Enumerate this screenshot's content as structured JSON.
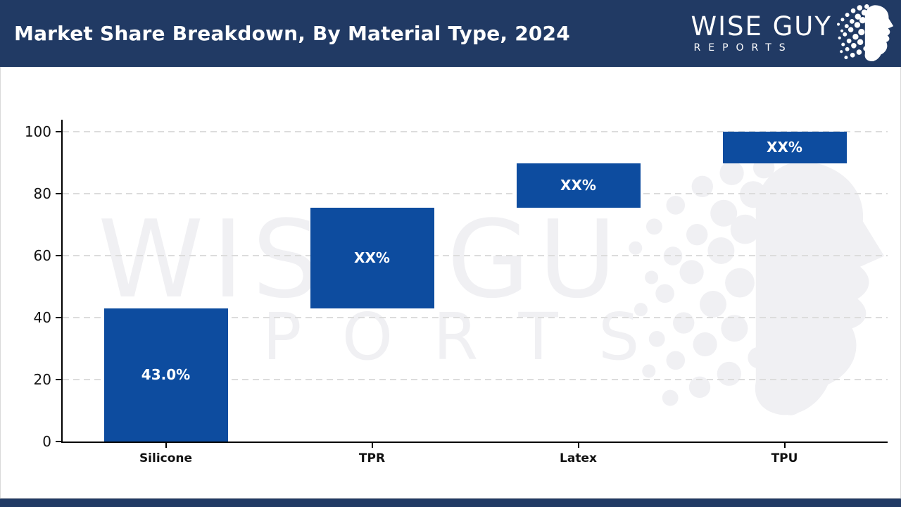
{
  "header": {
    "title": "Market Share Breakdown, By Material Type, 2024",
    "logo": {
      "wordmark": "WISE GUY",
      "subtext": "REPORTS"
    }
  },
  "watermark": {
    "line1": "WISE GU",
    "line2": "P O R T S"
  },
  "chart_data": {
    "type": "bar",
    "subtype": "waterfall",
    "title": "Market Share Breakdown, By Material Type, 2024",
    "categories": [
      "Silicone",
      "TPR",
      "Latex",
      "TPU"
    ],
    "segments": [
      {
        "category": "Silicone",
        "start": 0,
        "end": 43.0,
        "value": 43.0,
        "label": "43.0%"
      },
      {
        "category": "TPR",
        "start": 43.0,
        "end": 75.5,
        "value": 32.5,
        "label": "XX%"
      },
      {
        "category": "Latex",
        "start": 75.5,
        "end": 89.8,
        "value": 14.3,
        "label": "XX%"
      },
      {
        "category": "TPU",
        "start": 89.8,
        "end": 100.0,
        "value": 10.2,
        "label": "XX%"
      }
    ],
    "xlabel": "",
    "ylabel": "",
    "ylim": [
      0,
      100
    ],
    "yticks": [
      0,
      20,
      40,
      60,
      80,
      100
    ],
    "grid": "horizontal-dashed",
    "legend": "none",
    "colors": {
      "bar": "#0d4c9f",
      "bar_label": "#ffffff",
      "grid": "#dcdcdc",
      "axis": "#000000",
      "header_bg": "#213a64",
      "watermark": "#f0f0f3"
    }
  }
}
